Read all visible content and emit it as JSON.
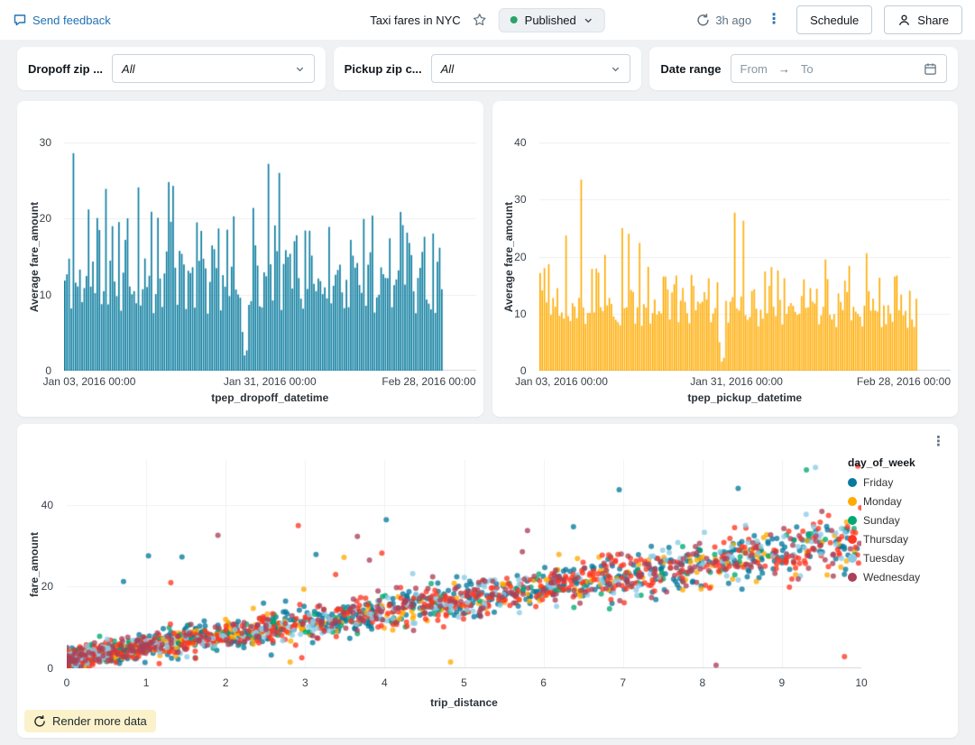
{
  "topbar": {
    "feedback": "Send feedback",
    "title": "Taxi fares in NYC",
    "status": "Published",
    "last_refresh": "3h ago",
    "schedule": "Schedule",
    "share": "Share"
  },
  "filters": {
    "dropoff": {
      "label": "Dropoff zip ...",
      "value": "All"
    },
    "pickup": {
      "label": "Pickup zip c...",
      "value": "All"
    },
    "date_range": {
      "label": "Date range",
      "from_placeholder": "From",
      "to_placeholder": "To"
    }
  },
  "footer": {
    "render_more": "Render more data"
  },
  "colors": {
    "accent_blue": "#2272B4",
    "published_green": "#29A36A"
  },
  "chart_data": [
    {
      "type": "bar",
      "ylabel": "Average fare_amount",
      "xlabel": "tpep_dropoff_datetime",
      "x_ticks": [
        "Jan 03, 2016 00:00",
        "Jan 31, 2016 00:00",
        "Feb 28, 2016 00:00"
      ],
      "y_ticks": [
        0,
        10,
        20,
        30
      ],
      "ylim": [
        0,
        30
      ],
      "color": "#077A9D",
      "n_bars": 175,
      "seed": 11,
      "base_range": [
        7.5,
        16
      ],
      "spike_prob": 0.1,
      "spike_range": [
        16,
        21.5
      ],
      "gap_pos": 0.475,
      "peaks": [
        [
          0.025,
          28.6
        ],
        [
          0.065,
          21.2
        ],
        [
          0.09,
          18.5
        ],
        [
          0.11,
          23.9
        ],
        [
          0.125,
          19.0
        ],
        [
          0.16,
          17.2
        ],
        [
          0.195,
          24.1
        ],
        [
          0.23,
          20.9
        ],
        [
          0.275,
          24.8
        ],
        [
          0.29,
          24.3
        ],
        [
          0.35,
          19.5
        ],
        [
          0.41,
          18.7
        ],
        [
          0.447,
          20.3
        ],
        [
          0.498,
          21.4
        ],
        [
          0.541,
          27.2
        ],
        [
          0.57,
          26.0
        ],
        [
          0.615,
          17.8
        ],
        [
          0.65,
          18.4
        ],
        [
          0.7,
          18.9
        ],
        [
          0.76,
          17.2
        ],
        [
          0.815,
          20.4
        ],
        [
          0.86,
          17.4
        ],
        [
          0.915,
          16.8
        ],
        [
          0.955,
          17.6
        ]
      ]
    },
    {
      "type": "bar",
      "ylabel": "Average fare_amount",
      "xlabel": "tpep_pickup_datetime",
      "x_ticks": [
        "Jan 03, 2016 00:00",
        "Jan 31, 2016 00:00",
        "Feb 28, 2016 00:00"
      ],
      "y_ticks": [
        0,
        10,
        20,
        30,
        40
      ],
      "ylim": [
        0,
        40
      ],
      "color": "#FFAB00",
      "n_bars": 175,
      "seed": 12,
      "base_range": [
        7.5,
        14.5
      ],
      "spike_prob": 0.1,
      "spike_range": [
        14.5,
        19
      ],
      "gap_pos": 0.48,
      "peaks": [
        [
          0.014,
          18.0
        ],
        [
          0.07,
          23.7
        ],
        [
          0.112,
          33.5
        ],
        [
          0.17,
          20.3
        ],
        [
          0.218,
          25.0
        ],
        [
          0.237,
          24.0
        ],
        [
          0.265,
          22.4
        ],
        [
          0.334,
          16.5
        ],
        [
          0.403,
          16.8
        ],
        [
          0.47,
          15.5
        ],
        [
          0.518,
          27.7
        ],
        [
          0.542,
          26.3
        ],
        [
          0.6,
          17.4
        ],
        [
          0.65,
          16.2
        ],
        [
          0.7,
          16.0
        ],
        [
          0.757,
          19.5
        ],
        [
          0.81,
          15.8
        ],
        [
          0.866,
          20.6
        ],
        [
          0.905,
          16.3
        ],
        [
          0.943,
          16.5
        ]
      ]
    },
    {
      "type": "scatter",
      "ylabel": "fare_amount",
      "xlabel": "trip_distance",
      "x_ticks": [
        0,
        1,
        2,
        3,
        4,
        5,
        6,
        7,
        8,
        9,
        10
      ],
      "y_ticks": [
        0,
        20,
        40
      ],
      "xlim": [
        0,
        10
      ],
      "ylim": [
        0,
        51
      ],
      "legend_title": "day_of_week",
      "series": [
        {
          "name": "Friday",
          "color": "#077A9D",
          "count": 700,
          "seed": 21
        },
        {
          "name": "Monday",
          "color": "#FFAB00",
          "count": 280,
          "seed": 22
        },
        {
          "name": "Sunday",
          "color": "#00A972",
          "count": 140,
          "seed": 23
        },
        {
          "name": "Thursday",
          "color": "#FF3621",
          "count": 520,
          "seed": 24
        },
        {
          "name": "Tuesday",
          "color": "#8BCAE7",
          "count": 230,
          "seed": 25
        },
        {
          "name": "Wednesday",
          "color": "#AB4057",
          "count": 340,
          "seed": 26
        }
      ],
      "trend": {
        "intercept": 2.4,
        "slope": 2.9,
        "sigma_base": 1.2,
        "sigma_slope": 0.22,
        "x_power": 1.5,
        "outlier_prob": 0.012,
        "outlier_min": 6,
        "outlier_max": 24,
        "low_outlier_prob": 0.003
      }
    }
  ]
}
